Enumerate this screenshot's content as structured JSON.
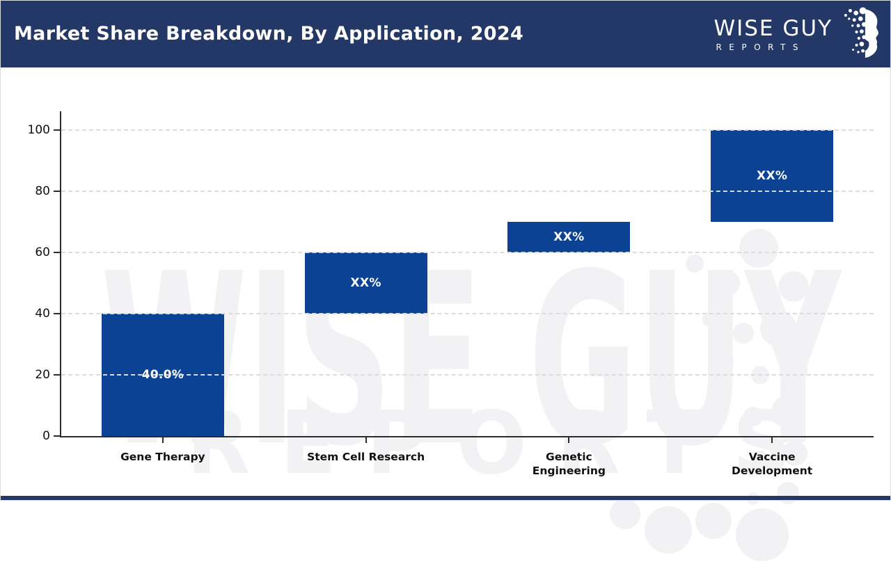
{
  "header": {
    "bg_color": "#233866",
    "title": "Market Share Breakdown, By Application, 2024",
    "logo": {
      "line1": "WISE GUY",
      "line2": "REPORTS",
      "face_icon": "dotted-face-profile"
    }
  },
  "watermark": {
    "line1": "WISE GUY",
    "line2": "REPORTS"
  },
  "chart_data": {
    "type": "bar",
    "subtype": "floating-waterfall",
    "title": "Market Share Breakdown, By Application, 2024",
    "categories": [
      "Gene Therapy",
      "Stem Cell Research",
      "Genetic Engineering",
      "Vaccine Development"
    ],
    "bars": [
      {
        "category": "Gene Therapy",
        "category_label": "Gene Therapy",
        "start": 0,
        "end": 40,
        "value_label": "40.0%"
      },
      {
        "category": "Stem Cell Research",
        "category_label": "Stem Cell Research",
        "start": 40,
        "end": 60,
        "value_label": "XX%"
      },
      {
        "category": "Genetic Engineering",
        "category_label": "Genetic\nEngineering",
        "start": 60,
        "end": 70,
        "value_label": "XX%"
      },
      {
        "category": "Vaccine Development",
        "category_label": "Vaccine\nDevelopment",
        "start": 70,
        "end": 100,
        "value_label": "XX%"
      }
    ],
    "xlabel": "",
    "ylabel": "",
    "ylim": [
      0,
      100
    ],
    "yticks": [
      0,
      20,
      40,
      60,
      80,
      100
    ],
    "bar_color": "#0b4294",
    "grid": true,
    "gridline_style": "dashed",
    "gridline_color": "#dcdcdc",
    "legend": false
  }
}
